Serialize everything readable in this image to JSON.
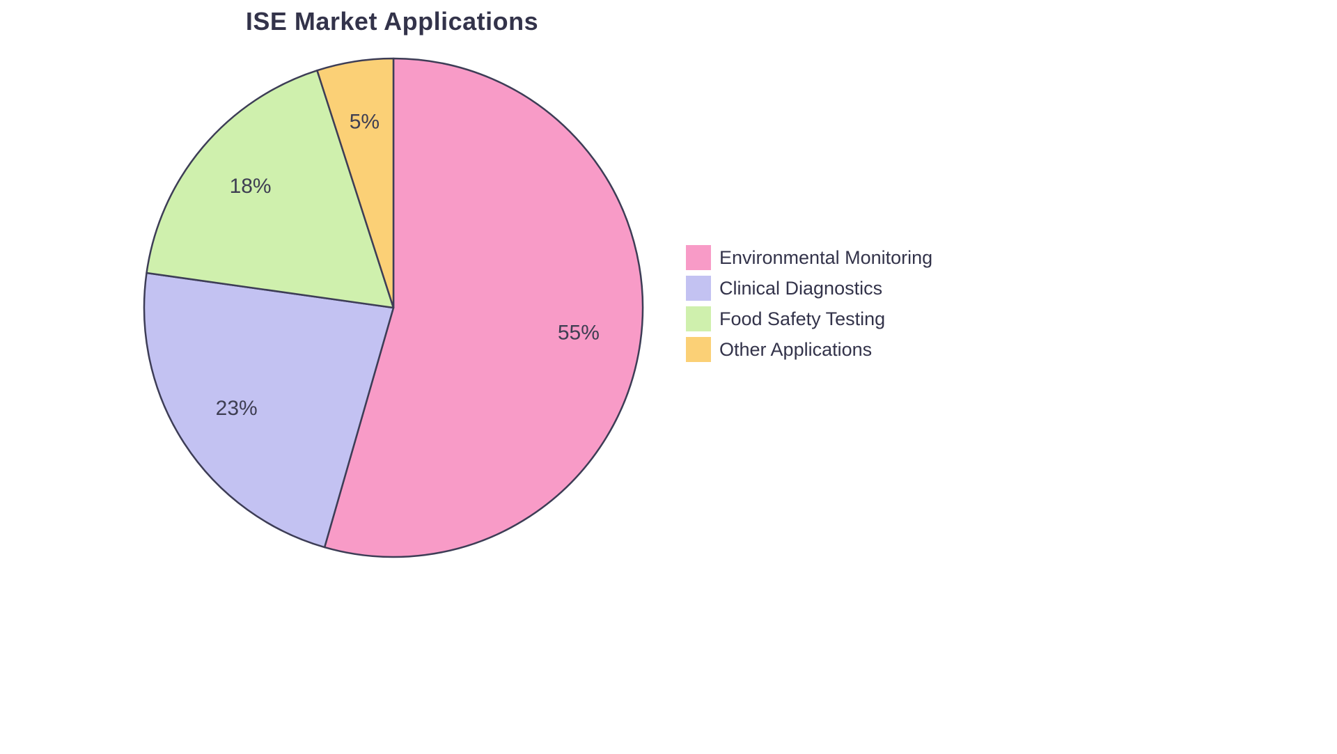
{
  "chart_data": {
    "type": "pie",
    "title": "ISE Market Applications",
    "labels": [
      "Environmental Monitoring",
      "Clinical Diagnostics",
      "Food Safety Testing",
      "Other Applications"
    ],
    "values": [
      55,
      23,
      18,
      5
    ],
    "percent_labels": [
      "55%",
      "23%",
      "18%",
      "5%"
    ],
    "colors": [
      "#F89BC7",
      "#C3C2F2",
      "#CFF0AD",
      "#FBD076"
    ],
    "stroke_color": "#3D3D56",
    "start_angle_deg": 0,
    "direction": "clockwise",
    "legend_position": "right",
    "background": "#FFFFFF"
  }
}
